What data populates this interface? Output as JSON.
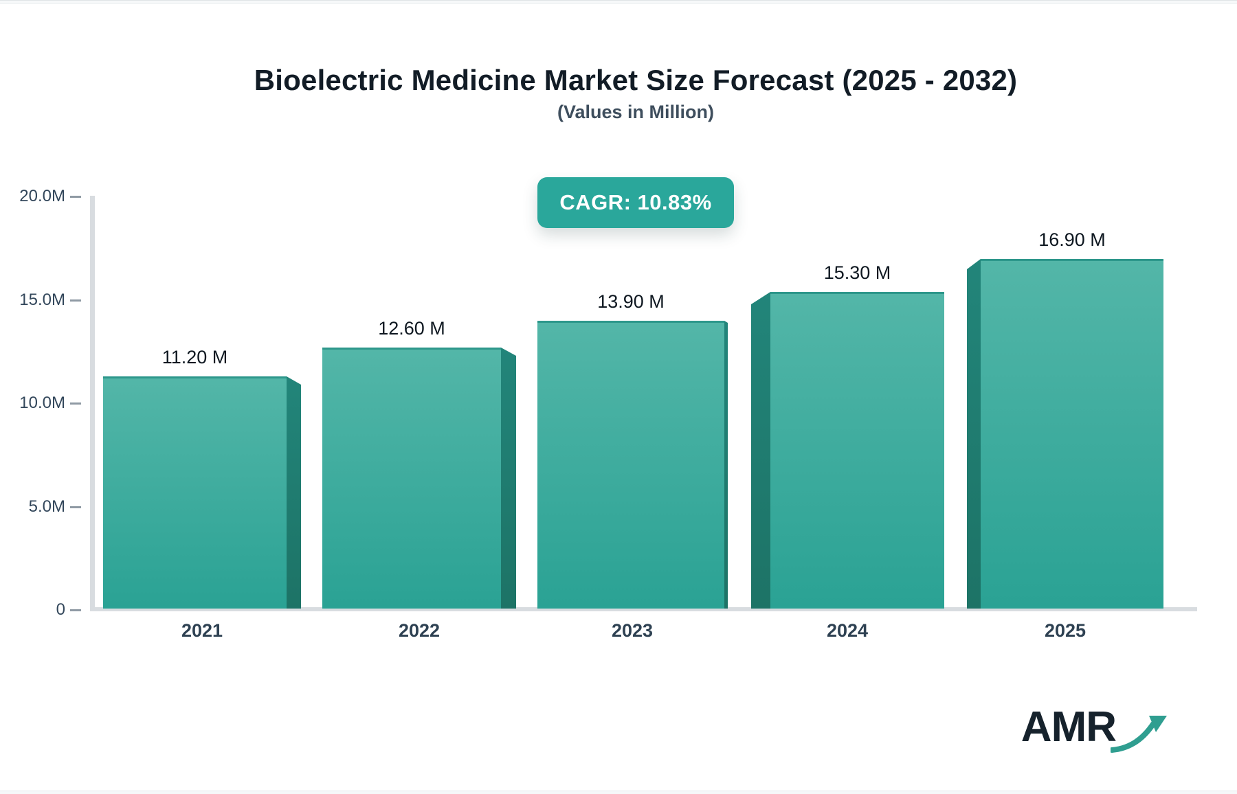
{
  "header": {
    "title": "Bioelectric Medicine Market Size Forecast (2025 - 2032)",
    "subtitle": "(Values in Million)",
    "cagr_badge": "CAGR: 10.83%"
  },
  "chart_data": {
    "type": "bar",
    "title": "Bioelectric Medicine Market Size Forecast (2025 - 2032)",
    "subtitle": "(Values in Million)",
    "unit": "Million",
    "cagr": "10.83%",
    "categories": [
      "2021",
      "2022",
      "2023",
      "2024",
      "2025"
    ],
    "values": [
      11.2,
      12.6,
      13.9,
      15.3,
      16.9
    ],
    "value_labels": [
      "11.20 M",
      "12.60 M",
      "13.90 M",
      "15.30 M",
      "16.90 M"
    ],
    "ylabel": "",
    "xlabel": "",
    "ylim": [
      0,
      20
    ],
    "y_ticks": [
      {
        "label": "20.0M",
        "value": 20
      },
      {
        "label": "15.0M",
        "value": 15
      },
      {
        "label": "10.0M",
        "value": 10
      },
      {
        "label": "5.0M",
        "value": 5
      },
      {
        "label": "0",
        "value": 0
      }
    ],
    "grid": false,
    "legend": false
  },
  "footer": {
    "logo_text": "AMR"
  },
  "colors": {
    "accent": "#2aa79b",
    "bar_top": "#53b6a8",
    "bar_bottom": "#2aa294",
    "bar_side": "#1d7366",
    "axis": "#d8dce0",
    "tick": "#8f9aa4",
    "text_dark": "#121c26",
    "text_slate": "#3e4e5d",
    "label": "#33475b"
  }
}
